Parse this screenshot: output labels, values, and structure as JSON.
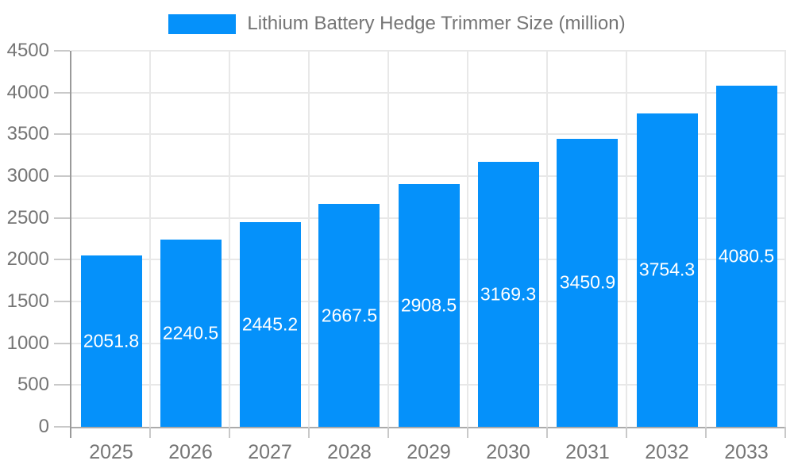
{
  "chart_data": {
    "type": "bar",
    "title": "Lithium Battery Hedge Trimmer Size (million)",
    "categories": [
      "2025",
      "2026",
      "2027",
      "2028",
      "2029",
      "2030",
      "2031",
      "2032",
      "2033"
    ],
    "values": [
      2051.8,
      2240.5,
      2445.2,
      2667.5,
      2908.5,
      3169.3,
      3450.9,
      3754.3,
      4080.5
    ],
    "value_labels": [
      "2051.8",
      "2240.5",
      "2445.2",
      "2667.5",
      "2908.5",
      "3169.3",
      "3450.9",
      "3754.3",
      "4080.5"
    ],
    "xlabel": "",
    "ylabel": "",
    "ylim": [
      0,
      4500
    ],
    "ytick_step": 500,
    "yticks": [
      "0",
      "500",
      "1000",
      "1500",
      "2000",
      "2500",
      "3000",
      "3500",
      "4000",
      "4500"
    ],
    "legend_position": "top",
    "grid": true,
    "colors": {
      "bar": "#0591fa",
      "bar_label": "#ffffff",
      "axis_text": "#757575",
      "gridline": "#e8e8e8",
      "axis_line": "#9a9a9a",
      "tick": "#c9c9c9",
      "background": "#ffffff"
    }
  }
}
